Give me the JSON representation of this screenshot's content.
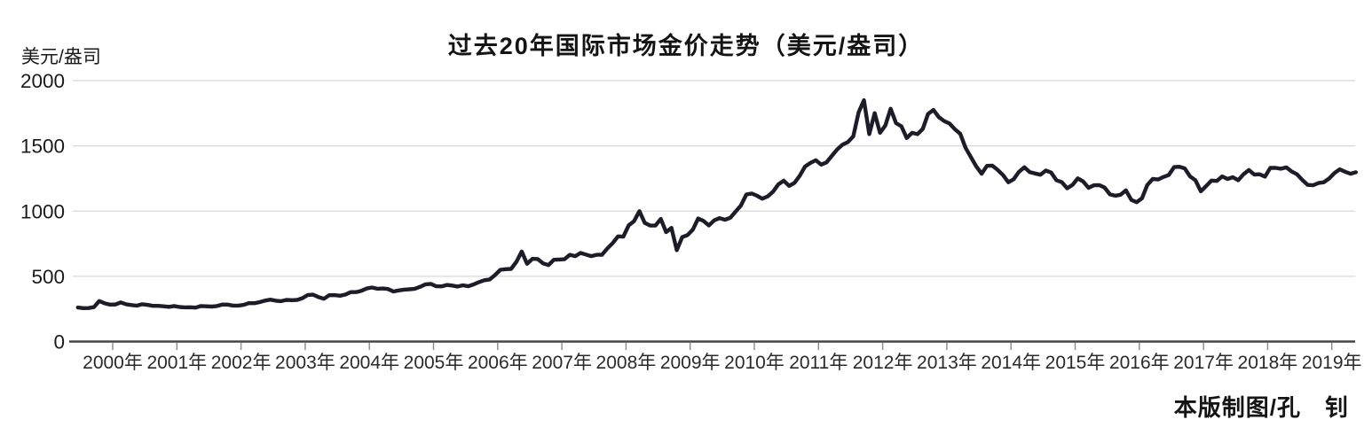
{
  "header": {
    "title": "过去20年国际市场金价走势（美元/盎司）"
  },
  "axis": {
    "unit_label": "美元/盎司"
  },
  "footer": {
    "credit": "本版制图/孔　钊"
  },
  "chart_data": {
    "type": "line",
    "title": "过去20年国际市场金价走势（美元/盎司）",
    "ylabel": "美元/盎司",
    "xlabel": "",
    "ylim": [
      0,
      2000
    ],
    "y_ticks": [
      0,
      500,
      1000,
      1500,
      2000
    ],
    "x_tick_labels": [
      "2000年",
      "2001年",
      "2002年",
      "2003年",
      "2004年",
      "2005年",
      "2006年",
      "2007年",
      "2008年",
      "2009年",
      "2010年",
      "2011年",
      "2012年",
      "2013年",
      "2014年",
      "2015年",
      "2016年",
      "2017年",
      "2018年",
      "2019年"
    ],
    "grid": true,
    "legend": "none",
    "line_color": "#1d1d29",
    "grid_color": "#d8d8d8",
    "axis_color": "#454545",
    "tick_color": "#8a8a8a",
    "label_color": "#1a1a1a",
    "series": [
      {
        "name": "国际市场金价（美元/盎司）",
        "start_year": 1999.4583,
        "points_per_year": 12,
        "values": [
          261,
          256,
          257,
          264,
          311,
          293,
          283,
          284,
          300,
          286,
          280,
          275,
          286,
          281,
          274,
          274,
          270,
          266,
          272,
          265,
          262,
          263,
          260,
          272,
          270,
          268,
          272,
          284,
          283,
          276,
          276,
          281,
          295,
          294,
          302,
          314,
          321,
          313,
          310,
          319,
          317,
          319,
          333,
          357,
          359,
          340,
          328,
          355,
          356,
          351,
          360,
          379,
          379,
          389,
          407,
          414,
          405,
          407,
          403,
          384,
          392,
          398,
          401,
          405,
          420,
          439,
          442,
          424,
          423,
          434,
          429,
          422,
          431,
          424,
          438,
          456,
          470,
          476,
          510,
          550,
          555,
          557,
          611,
          690,
          596,
          634,
          632,
          599,
          586,
          627,
          629,
          631,
          665,
          655,
          679,
          667,
          655,
          665,
          665,
          713,
          754,
          806,
          804,
          890,
          922,
          1000,
          910,
          889,
          889,
          940,
          839,
          871,
          700,
          800,
          816,
          858,
          943,
          924,
          890,
          929,
          946,
          934,
          949,
          996,
          1043,
          1127,
          1135,
          1118,
          1095,
          1113,
          1149,
          1205,
          1233,
          1193,
          1216,
          1271,
          1342,
          1370,
          1390,
          1356,
          1373,
          1424,
          1473,
          1510,
          1529,
          1573,
          1756,
          1850,
          1590,
          1751,
          1600,
          1656,
          1785,
          1674,
          1650,
          1560,
          1600,
          1590,
          1630,
          1745,
          1775,
          1720,
          1690,
          1671,
          1628,
          1593,
          1485,
          1414,
          1343,
          1286,
          1347,
          1349,
          1316,
          1276,
          1221,
          1244,
          1301,
          1336,
          1299,
          1288,
          1279,
          1311,
          1296,
          1237,
          1222,
          1175,
          1201,
          1251,
          1227,
          1178,
          1198,
          1199,
          1181,
          1128,
          1118,
          1125,
          1159,
          1086,
          1068,
          1098,
          1200,
          1246,
          1242,
          1261,
          1276,
          1337,
          1340,
          1327,
          1266,
          1236,
          1152,
          1192,
          1234,
          1231,
          1266,
          1246,
          1260,
          1237,
          1283,
          1315,
          1280,
          1282,
          1264,
          1331,
          1331,
          1325,
          1335,
          1303,
          1282,
          1238,
          1201,
          1198,
          1215,
          1221,
          1250,
          1292,
          1320,
          1301,
          1286,
          1298
        ]
      }
    ]
  }
}
